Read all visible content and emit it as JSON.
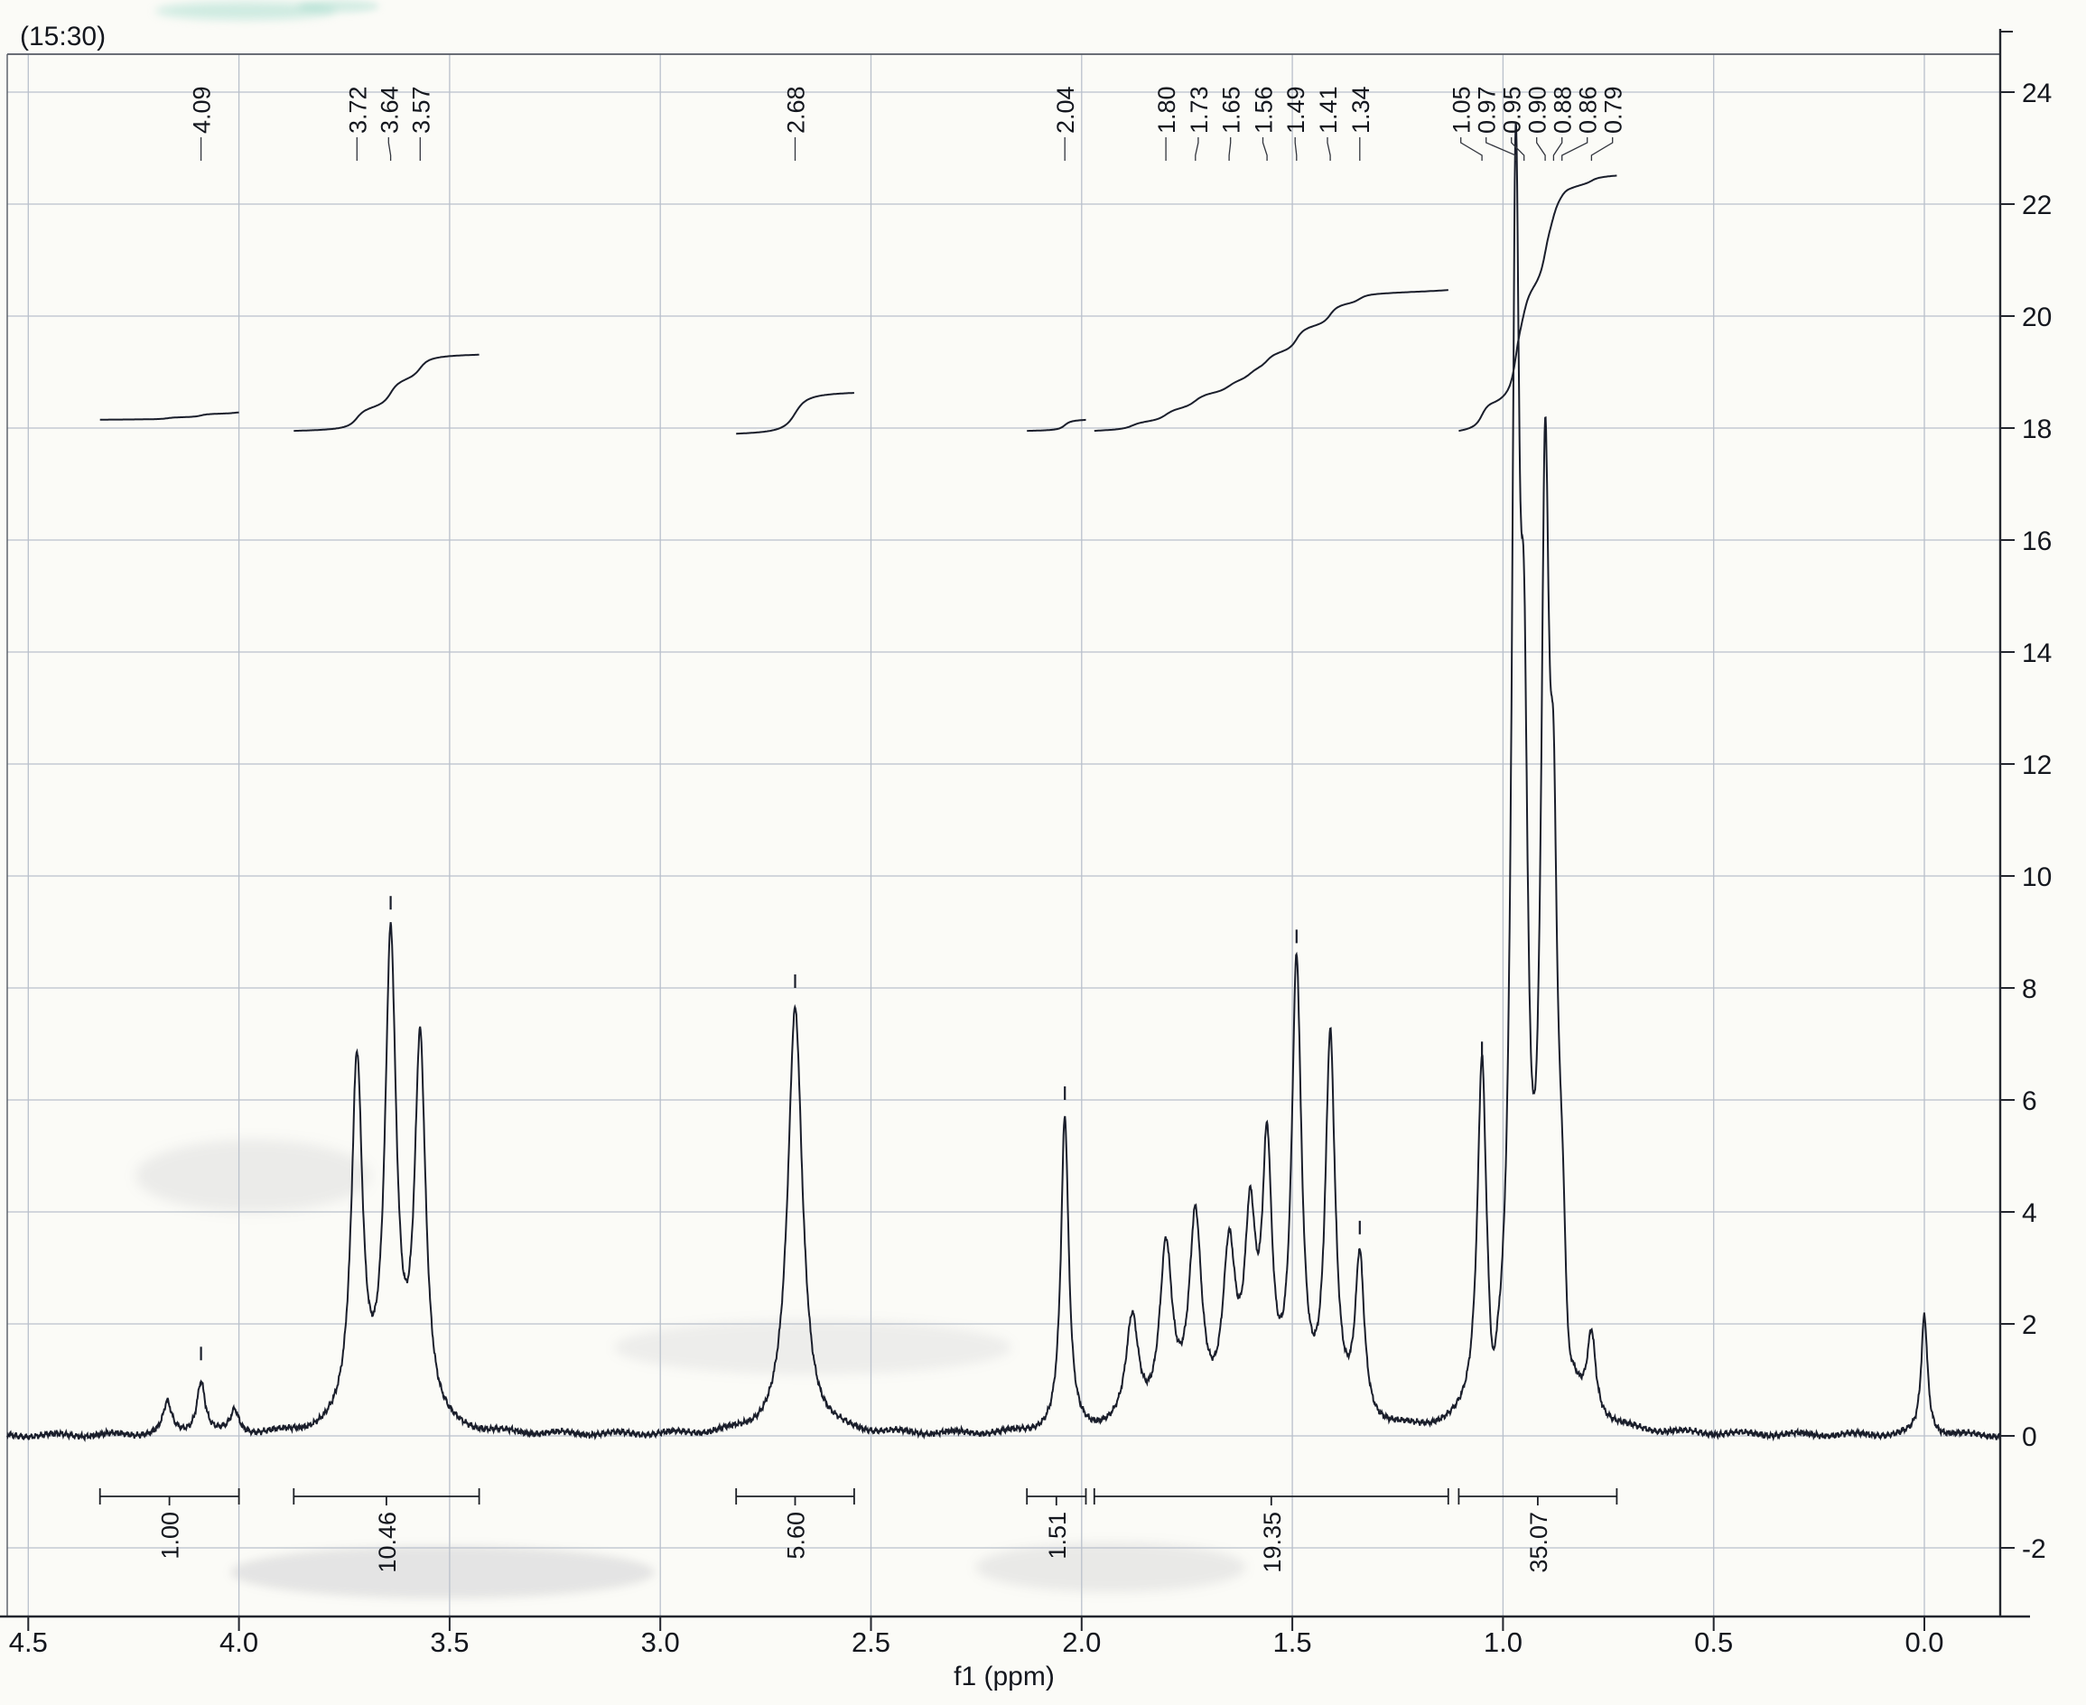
{
  "meta": {
    "timestamp": "(15:30)"
  },
  "colors": {
    "paper": "#fbfbf7",
    "grid": "#b9c0cb",
    "trace": "#1a1e2b",
    "axis": "#555a63",
    "text": "#14171e"
  },
  "chart_data": {
    "type": "line",
    "title": "",
    "xlabel": "f1 (ppm)",
    "x_range_ppm": [
      4.55,
      -0.18
    ],
    "x_ticks": [
      4.5,
      4.0,
      3.5,
      3.0,
      2.5,
      2.0,
      1.5,
      1.0,
      0.5,
      0.0
    ],
    "y_ticks": [
      -2,
      0,
      2,
      4,
      6,
      8,
      10,
      12,
      14,
      16,
      18,
      20,
      22,
      24
    ],
    "y_axis_side": "right",
    "grid": true,
    "peak_labels": [
      "4.09",
      "3.72",
      "3.64",
      "3.57",
      "2.68",
      "2.04",
      "1.80",
      "1.73",
      "1.65",
      "1.56",
      "1.49",
      "1.41",
      "1.34",
      "1.05",
      "0.97",
      "0.95",
      "0.90",
      "0.88",
      "0.86",
      "0.79"
    ],
    "peaks": [
      {
        "ppm": 4.17,
        "h": 0.55,
        "w": 0.012
      },
      {
        "ppm": 4.09,
        "h": 0.95,
        "w": 0.012
      },
      {
        "ppm": 4.01,
        "h": 0.4,
        "w": 0.012
      },
      {
        "ppm": 3.72,
        "h": 6.5,
        "w": 0.016
      },
      {
        "ppm": 3.64,
        "h": 8.5,
        "w": 0.016
      },
      {
        "ppm": 3.57,
        "h": 6.8,
        "w": 0.016
      },
      {
        "ppm": 2.68,
        "h": 7.6,
        "w": 0.021
      },
      {
        "ppm": 2.04,
        "h": 5.6,
        "w": 0.011
      },
      {
        "ppm": 1.88,
        "h": 1.9,
        "w": 0.018
      },
      {
        "ppm": 1.8,
        "h": 3.1,
        "w": 0.018
      },
      {
        "ppm": 1.73,
        "h": 3.6,
        "w": 0.018
      },
      {
        "ppm": 1.65,
        "h": 2.9,
        "w": 0.018
      },
      {
        "ppm": 1.6,
        "h": 3.3,
        "w": 0.016
      },
      {
        "ppm": 1.56,
        "h": 4.6,
        "w": 0.014
      },
      {
        "ppm": 1.49,
        "h": 8.0,
        "w": 0.014
      },
      {
        "ppm": 1.41,
        "h": 6.8,
        "w": 0.014
      },
      {
        "ppm": 1.34,
        "h": 2.9,
        "w": 0.013
      },
      {
        "ppm": 1.05,
        "h": 6.3,
        "w": 0.013
      },
      {
        "ppm": 0.97,
        "h": 20.5,
        "w": 0.011
      },
      {
        "ppm": 0.95,
        "h": 9.5,
        "w": 0.011
      },
      {
        "ppm": 0.9,
        "h": 15.3,
        "w": 0.012
      },
      {
        "ppm": 0.88,
        "h": 7.5,
        "w": 0.011
      },
      {
        "ppm": 0.86,
        "h": 2.4,
        "w": 0.012
      },
      {
        "ppm": 0.79,
        "h": 1.45,
        "w": 0.012
      },
      {
        "ppm": 0.0,
        "h": 2.15,
        "w": 0.009
      },
      {
        "ppm": 1.025,
        "h": -0.95,
        "w": 0.011
      },
      {
        "ppm": 0.845,
        "h": -0.85,
        "w": 0.01
      }
    ],
    "peak_markers": [
      {
        "ppm": 4.09,
        "y": 1.35
      },
      {
        "ppm": 3.64,
        "y": 9.4
      },
      {
        "ppm": 2.68,
        "y": 8.0
      },
      {
        "ppm": 2.04,
        "y": 6.0
      },
      {
        "ppm": 1.49,
        "y": 8.8
      },
      {
        "ppm": 1.34,
        "y": 3.6
      },
      {
        "ppm": 1.05,
        "y": 6.8
      },
      {
        "ppm": 0.9,
        "y": 17.8
      }
    ],
    "integrals": [
      {
        "from": 4.33,
        "to": 4.0,
        "value": "1.00",
        "y_start": 18.15
      },
      {
        "from": 3.87,
        "to": 3.43,
        "value": "10.46",
        "y_start": 17.95
      },
      {
        "from": 2.82,
        "to": 2.54,
        "value": "5.60",
        "y_start": 17.9
      },
      {
        "from": 2.13,
        "to": 1.99,
        "value": "1.51",
        "y_start": 17.95
      },
      {
        "from": 1.97,
        "to": 1.13,
        "value": "19.35",
        "y_start": 17.95
      },
      {
        "from": 1.105,
        "to": 0.73,
        "value": "35.07",
        "y_start": 17.95
      }
    ],
    "integral_scale": 0.13
  }
}
